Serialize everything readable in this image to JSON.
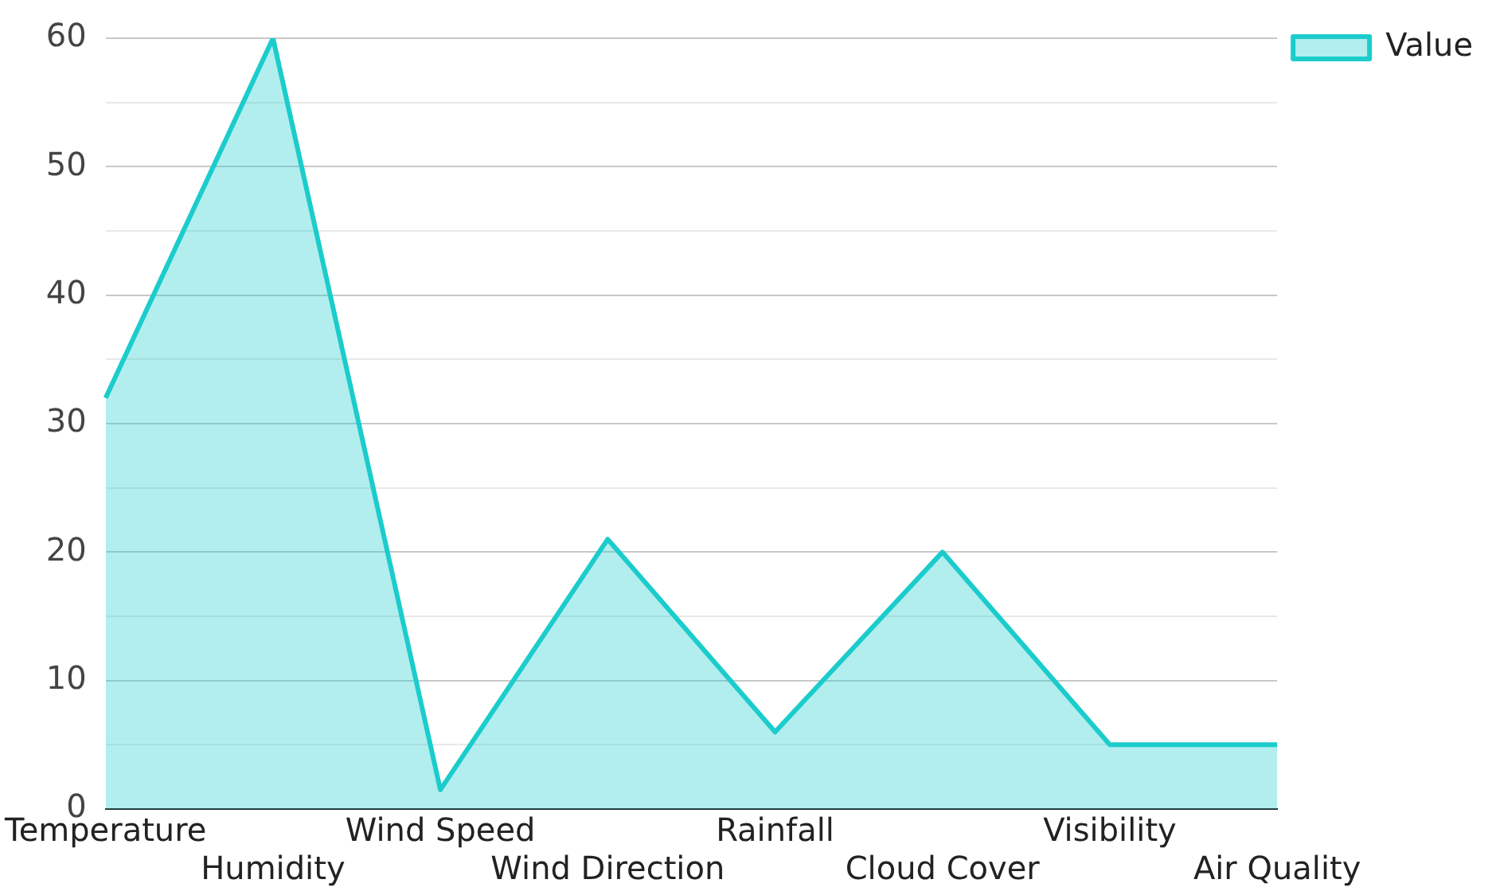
{
  "chart_data": {
    "type": "area",
    "categories": [
      "Temperature",
      "Humidity",
      "Wind Speed",
      "Wind Direction",
      "Rainfall",
      "Cloud Cover",
      "Visibility",
      "Air Quality"
    ],
    "series": [
      {
        "name": "Value",
        "color": "#1ccccc",
        "values": [
          32,
          60,
          1.5,
          21,
          6,
          20,
          5,
          5
        ]
      }
    ],
    "ylim": [
      0,
      60
    ],
    "yticks": [
      0,
      {
        "value": 5,
        "label": null
      },
      10,
      {
        "value": 15,
        "label": null
      },
      20,
      {
        "value": 25,
        "label": null
      },
      30,
      {
        "value": 35,
        "label": null
      },
      40,
      {
        "value": 45,
        "label": null
      },
      50,
      {
        "value": 55,
        "label": null
      },
      60
    ],
    "grid": "y",
    "legend": "top right"
  }
}
